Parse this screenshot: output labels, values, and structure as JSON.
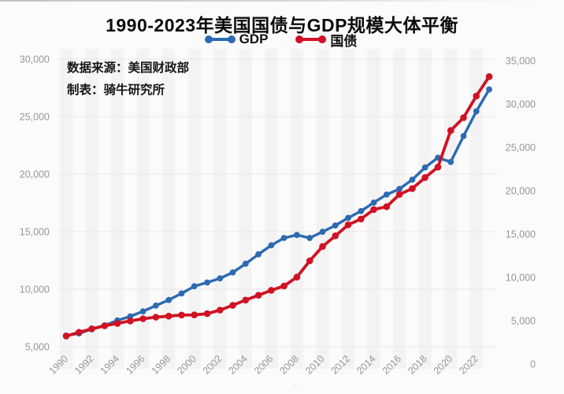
{
  "page": {
    "background": "#fbfbfb",
    "stripe_color": "#f3f3f3",
    "grid_color": "#e7e7e7",
    "tick_color": "#969696"
  },
  "notes": {
    "source": "数据来源：美国财政部",
    "author": "制表：骑牛研究所",
    "watermark": "··"
  },
  "chart_data": {
    "type": "line",
    "title": "1990-2023年美国国债与GDP规模大体平衡",
    "legend_position": "top",
    "grid": "horizontal",
    "x": [
      1990,
      1991,
      1992,
      1993,
      1994,
      1995,
      1996,
      1997,
      1998,
      1999,
      2000,
      2001,
      2002,
      2003,
      2004,
      2005,
      2006,
      2007,
      2008,
      2009,
      2010,
      2011,
      2012,
      2013,
      2014,
      2015,
      2016,
      2017,
      2018,
      2019,
      2020,
      2021,
      2022,
      2023
    ],
    "series": [
      {
        "name": "GDP",
        "axis": "left",
        "color": "#2c6ab1",
        "values": [
          5963,
          6158,
          6520,
          6859,
          7287,
          7640,
          8073,
          8578,
          9063,
          9631,
          10251,
          10582,
          10936,
          11458,
          12214,
          13037,
          13815,
          14452,
          14713,
          14449,
          14992,
          15543,
          16197,
          16785,
          17527,
          18225,
          18715,
          19519,
          20580,
          21433,
          21060,
          23315,
          25462,
          27360
        ]
      },
      {
        "name": "国债",
        "axis": "right",
        "color": "#d01223",
        "values": [
          3233,
          3665,
          4065,
          4411,
          4693,
          4974,
          5225,
          5413,
          5526,
          5656,
          5674,
          5807,
          6228,
          6783,
          7379,
          7933,
          8507,
          9008,
          10025,
          11910,
          13562,
          14790,
          16066,
          16738,
          17824,
          18151,
          19573,
          20245,
          21516,
          22719,
          26945,
          28429,
          30928,
          33167
        ]
      }
    ],
    "left_axis": {
      "range": [
        5000,
        30000
      ],
      "tick_labels": [
        "30,000",
        "25,000",
        "20,000",
        "15,000",
        "10,000",
        "5,000"
      ]
    },
    "right_axis": {
      "range": [
        0,
        35000
      ],
      "tick_labels": [
        "35,000",
        "30,000",
        "25,000",
        "20,000",
        "15,000",
        "10,000",
        "5,000",
        "0"
      ]
    },
    "x_tick_labels": [
      "1990",
      "1992",
      "1994",
      "1996",
      "1998",
      "2000",
      "2002",
      "2004",
      "2006",
      "2008",
      "2010",
      "2012",
      "2014",
      "2016",
      "2018",
      "2020",
      "2022"
    ]
  }
}
